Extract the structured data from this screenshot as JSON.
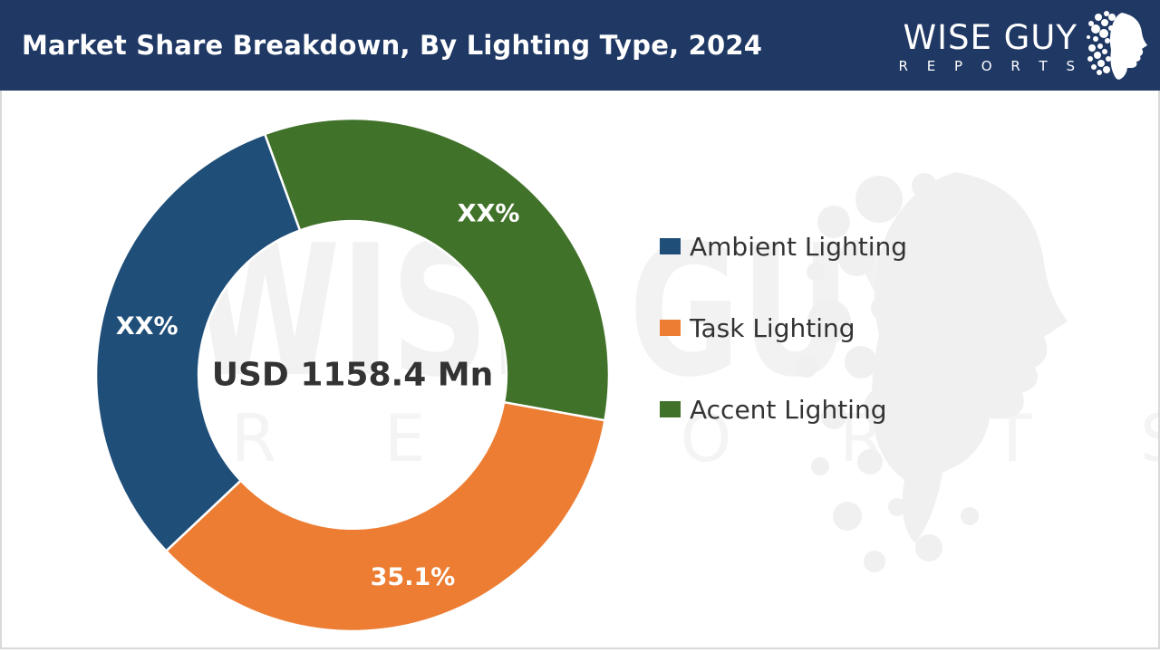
{
  "header": {
    "title": "Market Share Breakdown, By Lighting Type, 2024",
    "logo": {
      "line1": "WISE GUY",
      "line2": "R E P O R T S"
    }
  },
  "watermark": {
    "line1": "WISE GUY",
    "line2": "R E P O R T S"
  },
  "chart_data": {
    "type": "pie",
    "subtype": "donut",
    "title": "Market Share Breakdown, By Lighting Type, 2024",
    "center_label": "USD 1158.4 Mn",
    "total_value": 1158.4,
    "unit": "USD Mn",
    "series": [
      {
        "name": "Ambient Lighting",
        "value_pct": 31.5,
        "label": "XX%",
        "color": "#1f4e79"
      },
      {
        "name": "Task Lighting",
        "value_pct": 35.1,
        "label": "35.1%",
        "color": "#ec7d33"
      },
      {
        "name": "Accent Lighting",
        "value_pct": 33.4,
        "label": "XX%",
        "color": "#41722a"
      }
    ],
    "rotation_deg": -20,
    "inner_radius_ratio": 0.6,
    "legend_position": "right",
    "slice_label_color": "#ffffff",
    "note": "Ambient and Accent shares are masked as XX% in the figure; percentages estimated from arc angles"
  },
  "colors": {
    "header_bg": "#1f3864",
    "page_bg": "#ffffff",
    "text_dark": "#333333",
    "watermark": "#f2f2f2",
    "border": "#d9d9d9"
  }
}
